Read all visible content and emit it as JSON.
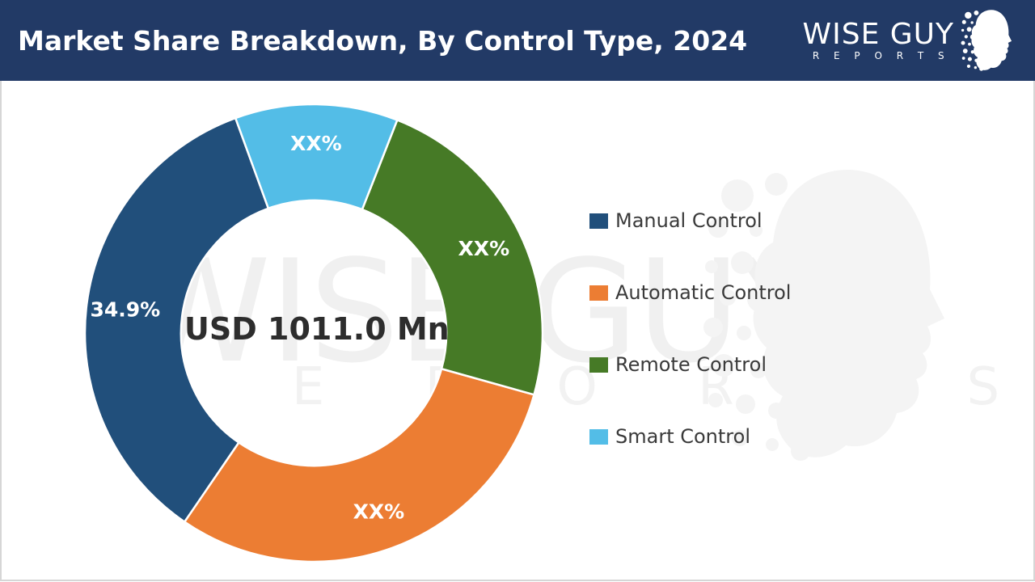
{
  "header": {
    "title": "Market Share Breakdown, By Control Type, 2024",
    "bg_color": "#223a66",
    "logo": {
      "line1": "WISE GUY",
      "line2": "R E P O R T S"
    }
  },
  "watermark": {
    "line1": "WISE GUY",
    "line2": "R E P O R T S"
  },
  "chart_data": {
    "type": "pie",
    "title": "Market Share Breakdown, By Control Type, 2024",
    "center_label": "USD 1011.0 Mn",
    "donut_hole_ratio": 0.58,
    "start_angle_deg_from_top": -20,
    "winding": "counterclockwise",
    "legend_position": "right",
    "segments": [
      {
        "name": "Manual Control",
        "label": "34.9%",
        "share_pct": 34.9,
        "color": "#214f7b"
      },
      {
        "name": "Automatic Control",
        "label": "XX%",
        "share_pct": 30.2,
        "color": "#ec7d33"
      },
      {
        "name": "Remote Control",
        "label": "XX%",
        "share_pct": 23.4,
        "color": "#467a26"
      },
      {
        "name": "Smart Control",
        "label": "XX%",
        "share_pct": 11.5,
        "color": "#53bde7"
      }
    ],
    "segment_gap_color": "#ffffff",
    "label_color": "#ffffff",
    "center_label_color": "#2d2d2d"
  }
}
